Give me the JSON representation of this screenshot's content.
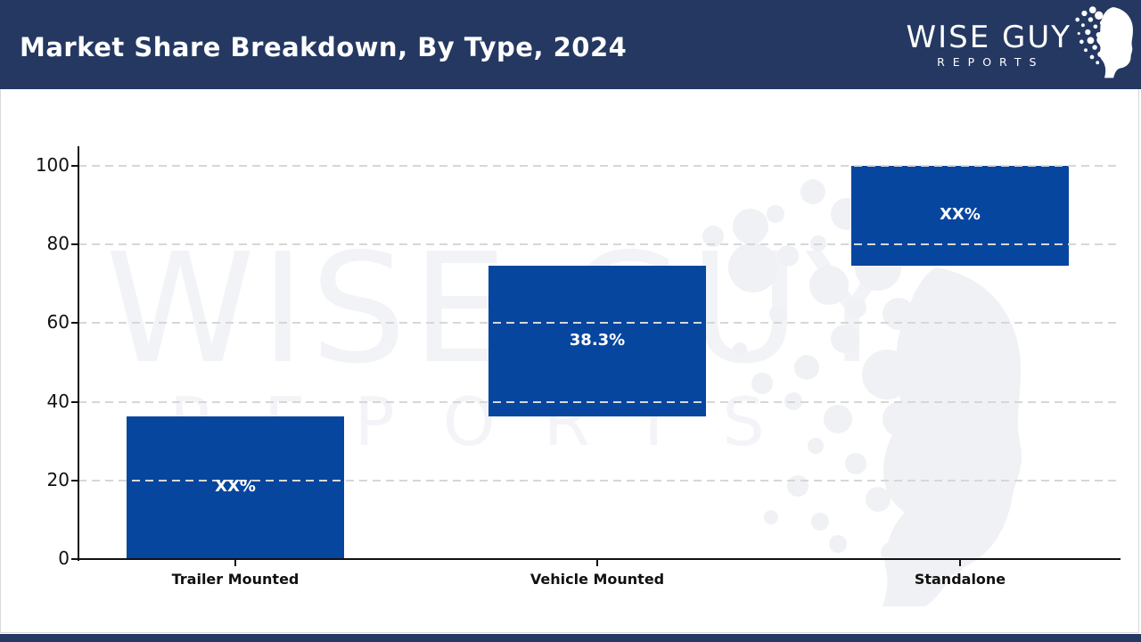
{
  "header": {
    "title": "Market Share Breakdown, By Type, 2024",
    "logo": {
      "wordmark": "WISE GUY",
      "subtitle": "REPORTS",
      "icon": "dotted-head-profile-icon"
    }
  },
  "watermark": {
    "wordmark": "WISE GUY",
    "subtitle": "REPORTS"
  },
  "colors": {
    "header_bg": "#243862",
    "footer_bg": "#243862",
    "bar": "#07469f",
    "gridline": "#d7d7d7",
    "axis": "#111111",
    "title_text": "#ffffff",
    "bar_label_text": "#ffffff",
    "watermark_text": "#f2f3f6"
  },
  "chart_data": {
    "type": "bar",
    "subtype": "stacked-waterfall",
    "title": "Market Share Breakdown, By Type, 2024",
    "categories": [
      "Trailer Mounted",
      "Vehicle Mounted",
      "Standalone"
    ],
    "segments": [
      {
        "category": "Trailer Mounted",
        "start": 0,
        "end": 36.2,
        "value_label": "XX%"
      },
      {
        "category": "Vehicle Mounted",
        "start": 36.2,
        "end": 74.5,
        "value_label": "38.3%"
      },
      {
        "category": "Standalone",
        "start": 74.5,
        "end": 100,
        "value_label": "XX%"
      }
    ],
    "xlabel": "",
    "ylabel": "",
    "ylim": [
      0,
      105
    ],
    "yticks": [
      0,
      20,
      40,
      60,
      80,
      100
    ],
    "grid": "horizontal-dashed",
    "legend": "none",
    "bar_color": "#07469f",
    "value_label_color": "#ffffff"
  }
}
